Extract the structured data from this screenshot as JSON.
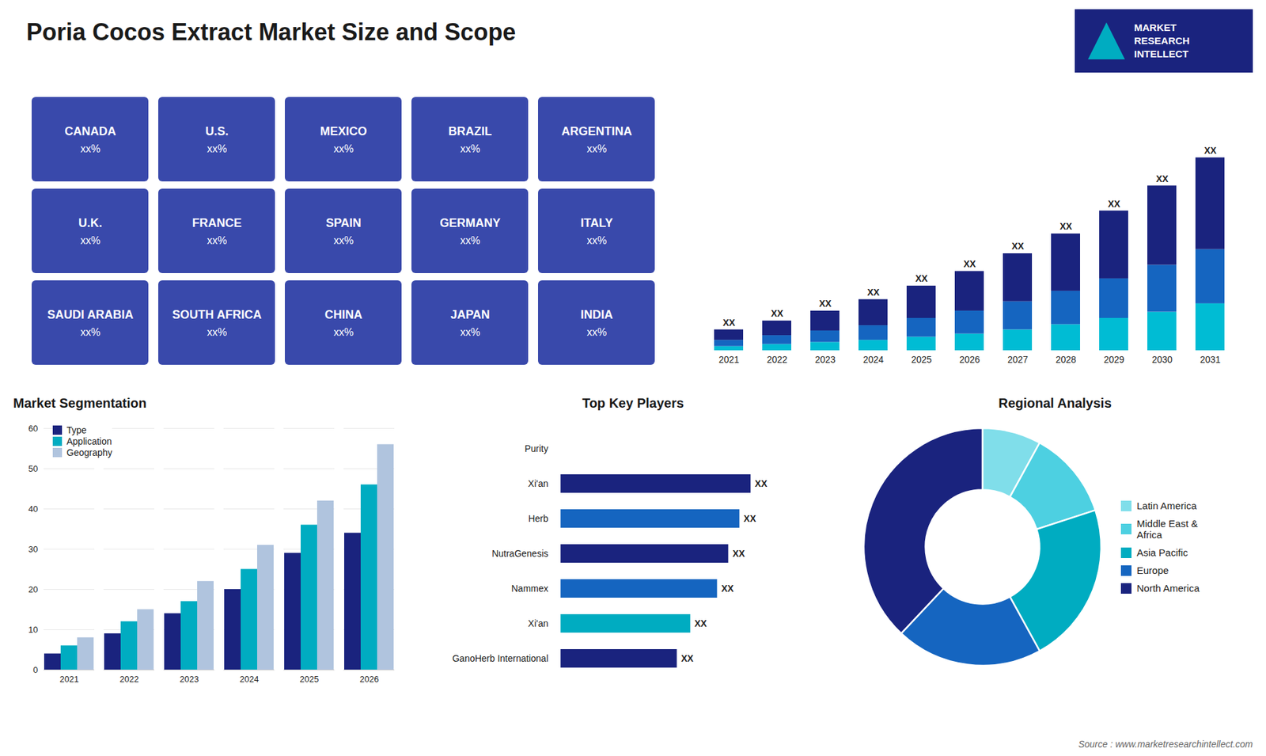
{
  "title": "Poria Cocos Extract Market Size and Scope",
  "annotations": [
    "MARKET",
    "RESEARCH",
    "INTELLECT",
    "Source : www.marketresearchintellect.com"
  ],
  "chart_data": [
    {
      "type": "map",
      "categories": [
        "CANADA",
        "U.S.",
        "MEXICO",
        "BRAZIL",
        "ARGENTINA",
        "U.K.",
        "FRANCE",
        "SPAIN",
        "GERMANY",
        "ITALY",
        "SAUDI ARABIA",
        "SOUTH AFRICA",
        "CHINA",
        "JAPAN",
        "INDIA"
      ],
      "annotations": [
        "xx%",
        "xx%",
        "xx%",
        "xx%",
        "xx%",
        "xx%",
        "xx%",
        "xx%",
        "xx%",
        "xx%",
        "xx%",
        "xx%",
        "xx%",
        "xx%",
        "xx%"
      ],
      "tick_labels": false
    },
    {
      "type": "bar",
      "stacked": true,
      "categories": [
        "2021",
        "2022",
        "2023",
        "2024",
        "2025",
        "2026",
        "2027",
        "2028",
        "2029",
        "2030",
        "2031"
      ],
      "series": [
        {
          "color": "#00bcd4",
          "values": [
            0.4,
            0.6,
            0.8,
            1.0,
            1.3,
            1.6,
            2.0,
            2.5,
            3.1,
            3.7,
            4.5
          ]
        },
        {
          "color": "#1565c0",
          "values": [
            0.6,
            0.85,
            1.1,
            1.4,
            1.8,
            2.2,
            2.7,
            3.2,
            3.8,
            4.5,
            5.2
          ]
        },
        {
          "color": "#1a237e",
          "values": [
            1.0,
            1.4,
            1.9,
            2.5,
            3.1,
            3.8,
            4.6,
            5.5,
            6.5,
            7.6,
            8.8
          ]
        }
      ],
      "data_labels": true,
      "value_labels": [
        "XX",
        "XX",
        "XX",
        "XX",
        "XX",
        "XX",
        "XX",
        "XX",
        "XX",
        "XX",
        "XX"
      ],
      "ylim": [
        0,
        24.42
      ],
      "tick_labels": "x"
    },
    {
      "type": "bar",
      "title": "Market Segmentation",
      "categories": [
        "2021",
        "2022",
        "2023",
        "2024",
        "2025",
        "2026"
      ],
      "series": [
        {
          "name": "Type",
          "color": "#1a237e",
          "values": [
            4,
            9,
            14,
            20,
            29,
            34
          ]
        },
        {
          "name": "Application",
          "color": "#00acc1",
          "values": [
            6,
            12,
            17,
            25,
            36,
            46
          ]
        },
        {
          "name": "Geography",
          "color": "#b0c4de",
          "values": [
            8,
            15,
            22,
            31,
            42,
            56
          ]
        }
      ],
      "ylim": [
        0,
        60
      ],
      "yticks": [
        0,
        10,
        20,
        30,
        40,
        50,
        60
      ],
      "grid": true,
      "legend": "top-left"
    },
    {
      "type": "bar",
      "title": "Top Key Players",
      "orientation": "horizontal",
      "categories": [
        "Purity",
        "Xi'an",
        "Herb",
        "NutraGenesis",
        "Nammex",
        "Xi'an",
        "GanoHerb International"
      ],
      "values": [
        0.0,
        8.5,
        8.0,
        7.5,
        7.0,
        5.8,
        5.2
      ],
      "colors": [
        "#cccccc",
        "#1a237e",
        "#1565c0",
        "#1a237e",
        "#1565c0",
        "#00acc1",
        "#1a237e"
      ],
      "data_labels": true,
      "value_labels": [
        null,
        "XX",
        "XX",
        "XX",
        "XX",
        "XX",
        "XX"
      ],
      "xlim": [
        -0.3,
        11.5
      ],
      "tick_labels": "y"
    },
    {
      "type": "pie",
      "title": "Regional Analysis",
      "categories": [
        "Latin America",
        "Middle East &\nAfrica",
        "Asia Pacific",
        "Europe",
        "North America"
      ],
      "values": [
        8,
        12,
        22,
        20,
        38
      ],
      "colors": [
        "#80deea",
        "#4dd0e1",
        "#00acc1",
        "#1565c0",
        "#1a237e"
      ],
      "legend": "right"
    }
  ]
}
